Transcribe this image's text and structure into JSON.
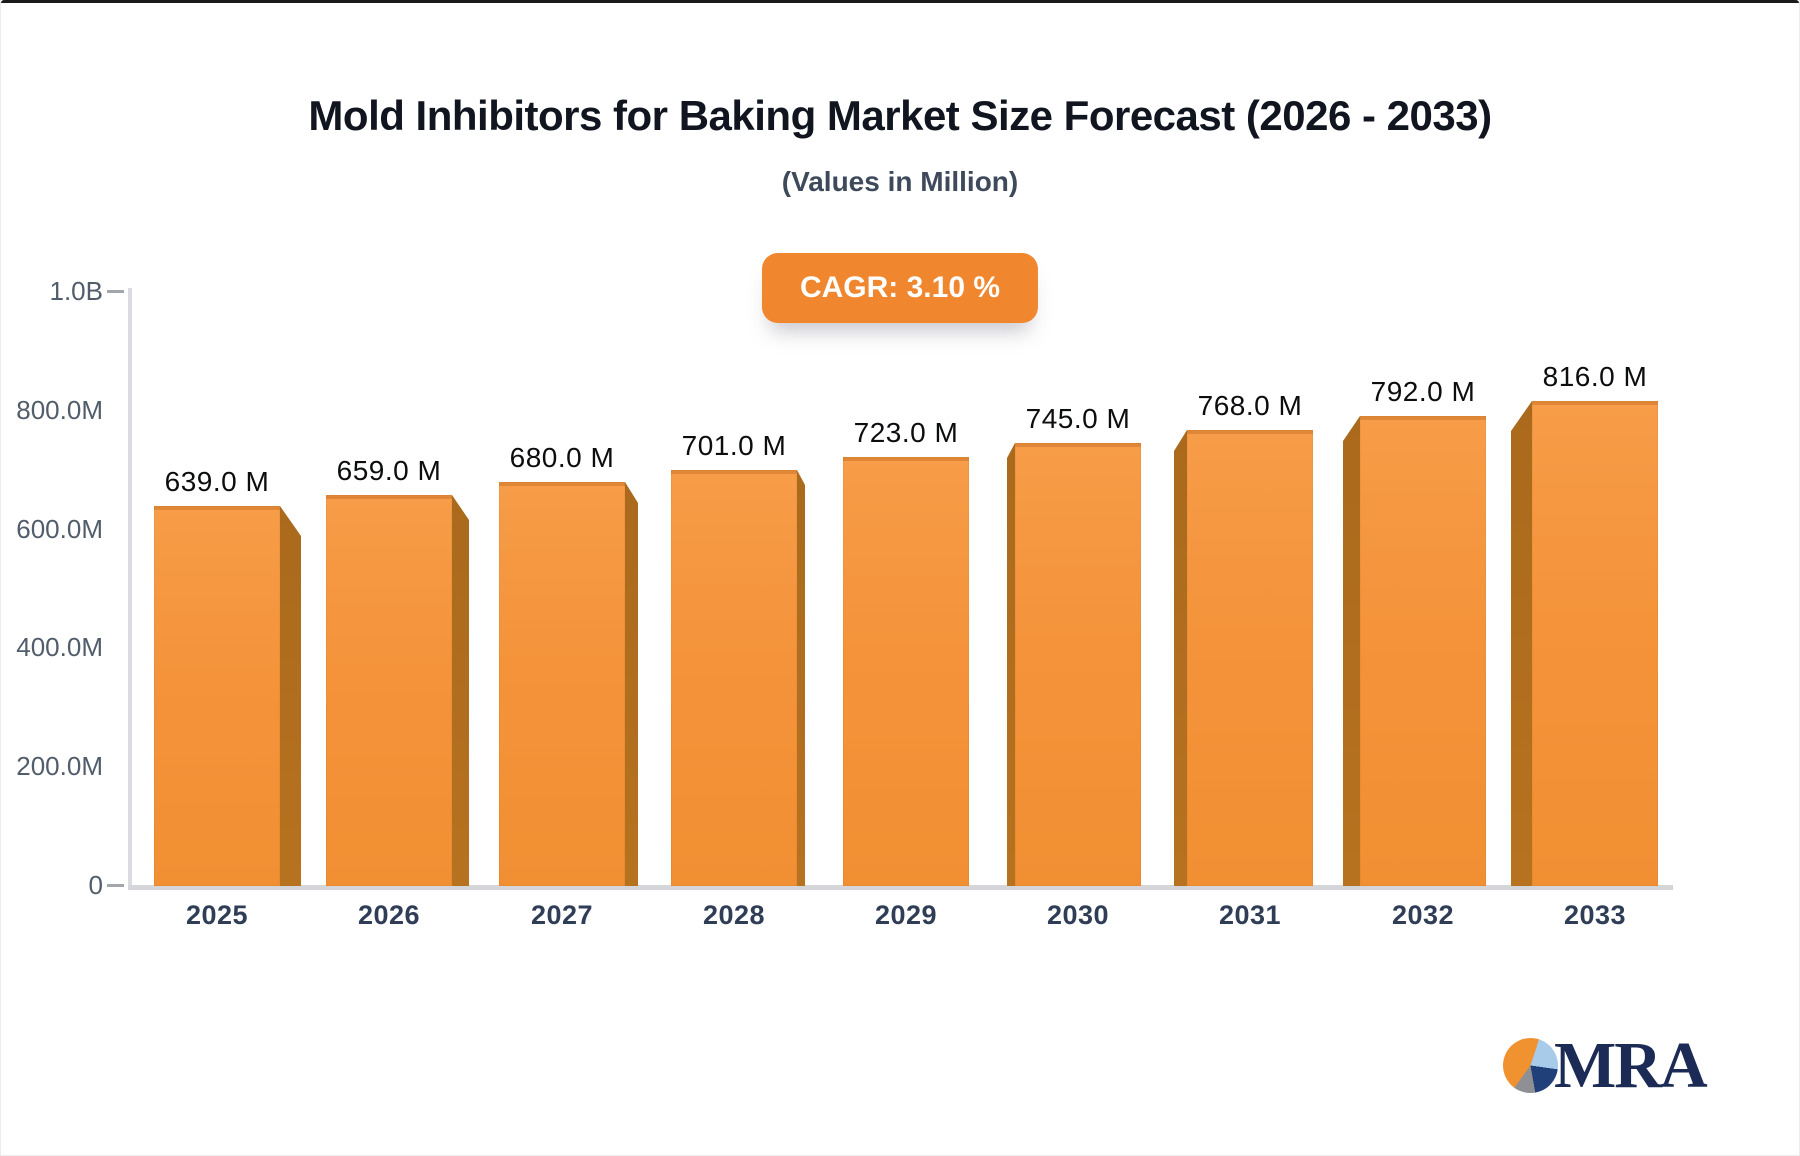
{
  "header": {
    "title": "Mold Inhibitors for Baking Market Size Forecast (2026 - 2033)",
    "subtitle": "(Values in Million)",
    "cagr_badge": "CAGR: 3.10 %"
  },
  "logo": {
    "text": "MRA",
    "colors": {
      "navy": "#1b2b55",
      "light_blue": "#a7cbe9",
      "orange": "#f19231",
      "gray": "#8e9095"
    }
  },
  "colors": {
    "bar_face": "#f4933a",
    "bar_side": "#b3701d",
    "badge_background": "#f0862d",
    "axis_line": "#d5d6da",
    "title_text": "#111520",
    "subtitle_text": "#3e4a5b",
    "y_label_text": "#525d6b",
    "x_label_text": "#2f3d57"
  },
  "chart_data": {
    "type": "bar",
    "title": "Mold Inhibitors for Baking Market Size Forecast (2026 - 2033)",
    "subtitle": "(Values in Million)",
    "annotation": "CAGR: 3.10 %",
    "categories": [
      "2025",
      "2026",
      "2027",
      "2028",
      "2029",
      "2030",
      "2031",
      "2032",
      "2033"
    ],
    "values": [
      639,
      659,
      680,
      701,
      723,
      745,
      768,
      792,
      816
    ],
    "value_labels": [
      "639.0 M",
      "659.0 M",
      "680.0 M",
      "701.0 M",
      "723.0 M",
      "745.0 M",
      "768.0 M",
      "792.0 M",
      "816.0 M"
    ],
    "xlabel": "",
    "ylabel": "",
    "ylim": [
      0,
      1000
    ],
    "yticks": [
      {
        "value": 0,
        "label": "0",
        "tick": true
      },
      {
        "value": 200,
        "label": "200.0M",
        "tick": false
      },
      {
        "value": 400,
        "label": "400.0M",
        "tick": false
      },
      {
        "value": 600,
        "label": "600.0M",
        "tick": false
      },
      {
        "value": 800,
        "label": "800.0M",
        "tick": false
      },
      {
        "value": 1000,
        "label": "1.0B",
        "tick": true
      }
    ],
    "grid": false,
    "legend": false,
    "style": "3d-perspective-bars, vanishing point at center"
  }
}
